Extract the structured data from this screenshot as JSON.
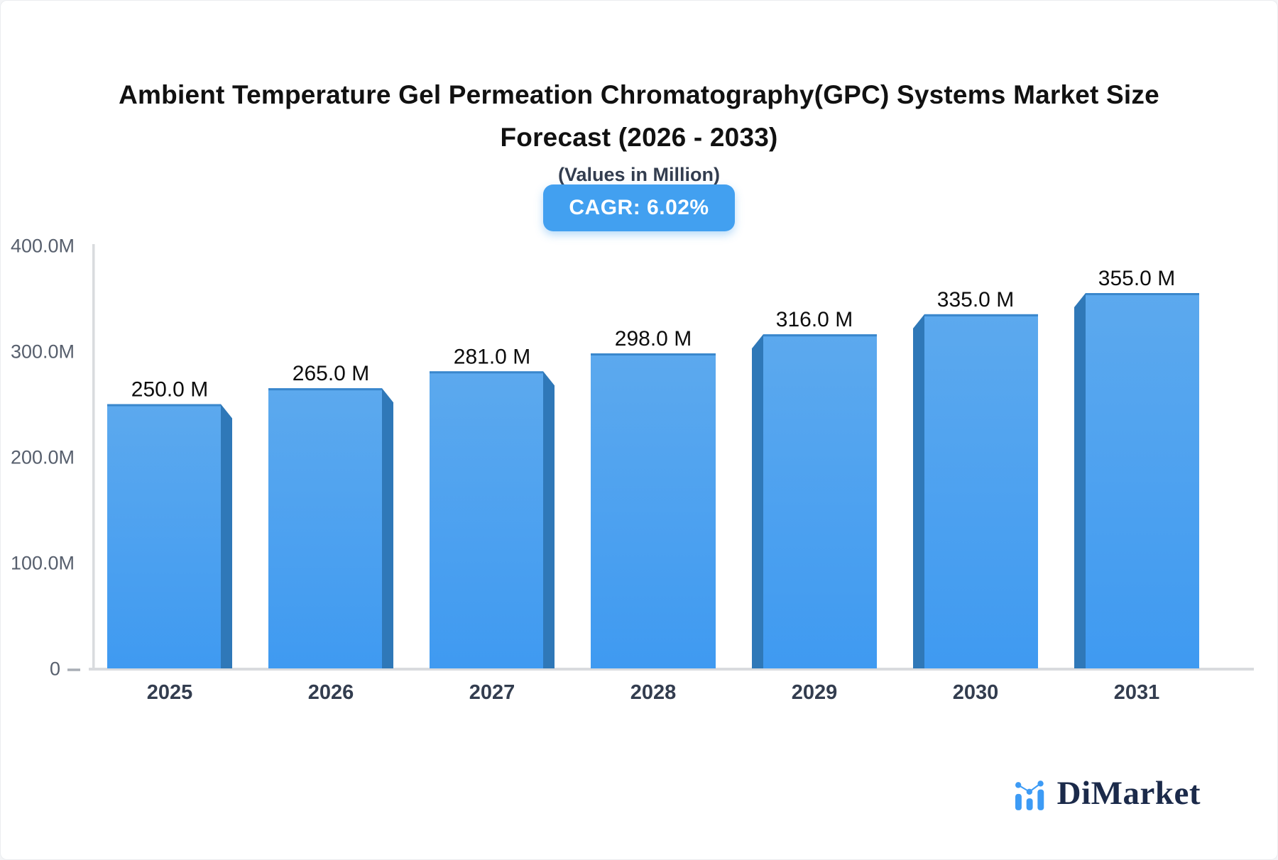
{
  "header": {
    "title_line1": "Ambient Temperature Gel Permeation Chromatography(GPC) Systems Market Size",
    "title_line2": "Forecast (2026 - 2033)",
    "subtitle": "(Values in Million)",
    "cagr_label": "CAGR: 6.02%"
  },
  "chart_data": {
    "type": "bar",
    "style": "3d-extruded-bars",
    "title": "Ambient Temperature Gel Permeation Chromatography(GPC) Systems Market Size Forecast (2026 - 2033)",
    "subtitle": "(Values in Million)",
    "cagr_percent": 6.02,
    "categories": [
      "2025",
      "2026",
      "2027",
      "2028",
      "2029",
      "2030",
      "2031"
    ],
    "values": [
      250,
      265,
      281,
      298,
      316,
      335,
      355
    ],
    "value_labels": [
      "250.0 M",
      "265.0 M",
      "281.0 M",
      "298.0 M",
      "316.0 M",
      "335.0 M",
      "355.0 M"
    ],
    "unit": "Million",
    "xlabel": "",
    "ylabel": "",
    "ylim": [
      0,
      400
    ],
    "y_ticks": [
      {
        "label": "400.0M",
        "value": 400
      },
      {
        "label": "300.0M",
        "value": 300
      },
      {
        "label": "200.0M",
        "value": 200
      },
      {
        "label": "100.0M",
        "value": 100
      },
      {
        "label": "0",
        "value": 0
      }
    ],
    "grid": false,
    "legend": false,
    "colors": {
      "bar_gradient_top": "#5CA9EE",
      "bar_gradient_bottom": "#3F9AF1",
      "bar_side": "#2F78B8",
      "bar_top_edge": "#3A87CC",
      "axis_line": "#D9DBDE",
      "tick_text": "#575F6D",
      "category_text": "#333d4f",
      "value_label_text": "#0d0d0d",
      "badge_blue": "#42a0f0"
    }
  },
  "branding": {
    "logo_text": "DiMarket",
    "logo_icon": "bar-chart-with-trend-dots-icon",
    "logo_blue": "#3d9bf5",
    "logo_navy": "#1b2a4a"
  }
}
